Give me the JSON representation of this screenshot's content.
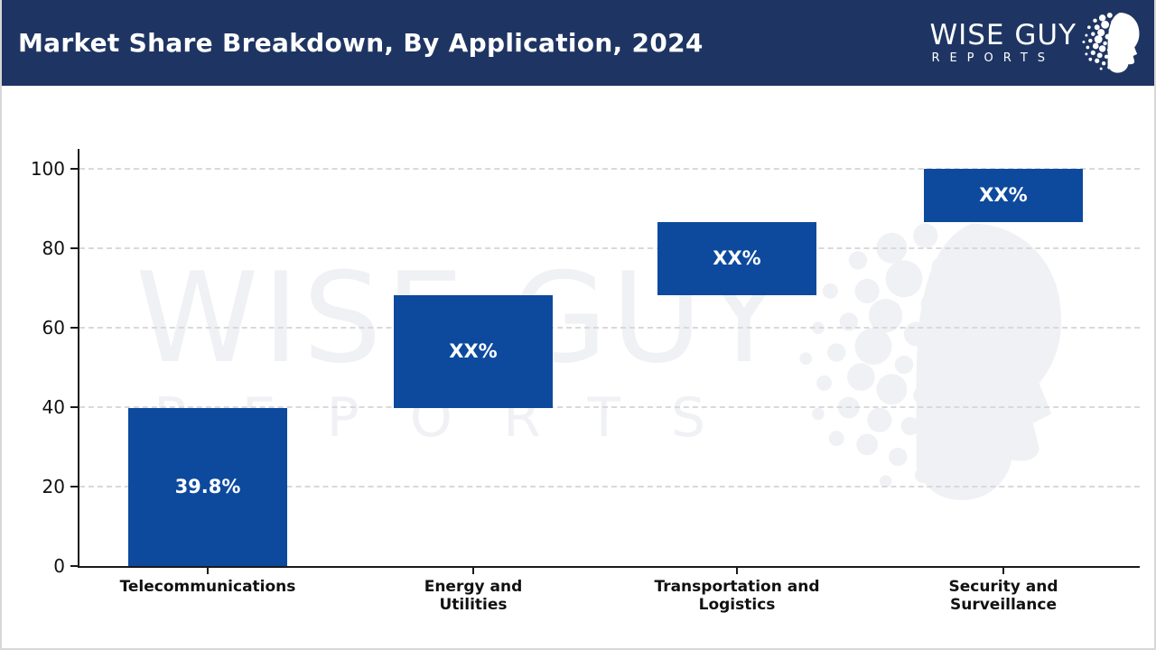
{
  "header": {
    "title": "Market Share Breakdown, By Application, 2024",
    "logo": {
      "primary": "WISE GUY",
      "secondary": "REPORTS"
    }
  },
  "watermark": {
    "primary": "WISE GUY",
    "secondary": "REPORTS"
  },
  "colors": {
    "header_bg": "#1e3563",
    "bar": "#0d4a9e",
    "bar_label": "#ffffff",
    "axis": "#1a1a1a",
    "grid": "#d9d9d9",
    "watermark": "#f0f1f4"
  },
  "chart_data": {
    "type": "bar",
    "subtype": "waterfall",
    "title": "Market Share Breakdown, By Application, 2024",
    "xlabel": "",
    "ylabel": "",
    "ylim": [
      0,
      100
    ],
    "yticks": [
      0,
      20,
      40,
      60,
      80,
      100
    ],
    "grid": "horizontal-dashed",
    "legend": "none",
    "segments": [
      {
        "category": "Telecommunications",
        "category_lines": [
          "Telecommunications"
        ],
        "start": 0,
        "end": 39.8,
        "label": "39.8%"
      },
      {
        "category": "Energy and Utilities",
        "category_lines": [
          "Energy and",
          "Utilities"
        ],
        "start": 39.8,
        "end": 68.2,
        "label": "XX%"
      },
      {
        "category": "Transportation and Logistics",
        "category_lines": [
          "Transportation and",
          "Logistics"
        ],
        "start": 68.2,
        "end": 86.6,
        "label": "XX%"
      },
      {
        "category": "Security and Surveillance",
        "category_lines": [
          "Security and",
          "Surveillance"
        ],
        "start": 86.6,
        "end": 100,
        "label": "XX%"
      }
    ]
  }
}
